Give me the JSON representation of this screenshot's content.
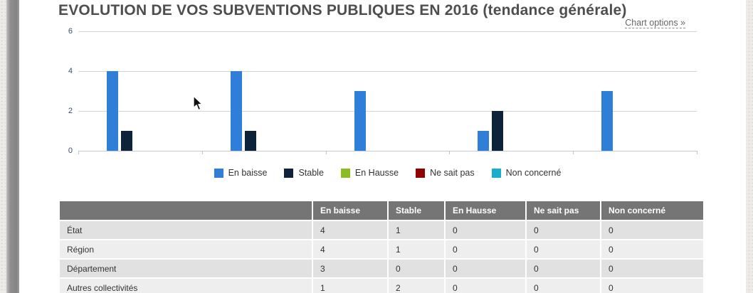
{
  "page": {
    "title": "EVOLUTION DE VOS SUBVENTIONS PUBLIQUES EN 2016 (tendance générale)",
    "chart_options_link": "Chart options »"
  },
  "chart_data": {
    "type": "bar",
    "title": "EVOLUTION DE VOS SUBVENTIONS PUBLIQUES EN 2016 (tendance générale)",
    "categories": [
      "État",
      "Région",
      "Département",
      "Autres collectivités",
      ""
    ],
    "series": [
      {
        "name": "En baisse",
        "color": "#2f7ed8",
        "values": [
          4,
          4,
          3,
          1,
          3
        ]
      },
      {
        "name": "Stable",
        "color": "#0d233a",
        "values": [
          1,
          1,
          0,
          2,
          0
        ]
      },
      {
        "name": "En Hausse",
        "color": "#8bbc21",
        "values": [
          0,
          0,
          0,
          0,
          0
        ]
      },
      {
        "name": "Ne sait pas",
        "color": "#910000",
        "values": [
          0,
          0,
          0,
          0,
          0
        ]
      },
      {
        "name": "Non concerné",
        "color": "#1aadce",
        "values": [
          0,
          0,
          0,
          0,
          0
        ]
      }
    ],
    "xlabel": "",
    "ylabel": "",
    "ylim": [
      0,
      6
    ],
    "yticks": [
      0,
      2,
      4,
      6
    ],
    "grid": true,
    "legend_position": "bottom",
    "x_axis_labels_visible": false
  },
  "table": {
    "headers": [
      "",
      "En baisse",
      "Stable",
      "En Hausse",
      "Ne sait pas",
      "Non concerné"
    ],
    "rows": [
      {
        "label": "État",
        "values": [
          "4",
          "1",
          "0",
          "0",
          "0"
        ]
      },
      {
        "label": "Région",
        "values": [
          "4",
          "1",
          "0",
          "0",
          "0"
        ]
      },
      {
        "label": "Département",
        "values": [
          "3",
          "0",
          "0",
          "0",
          "0"
        ]
      },
      {
        "label": "Autres collectivités",
        "values": [
          "1",
          "2",
          "0",
          "0",
          "0"
        ]
      }
    ]
  },
  "icons": {
    "mouse_cursor": "arrow-pointer-icon"
  }
}
